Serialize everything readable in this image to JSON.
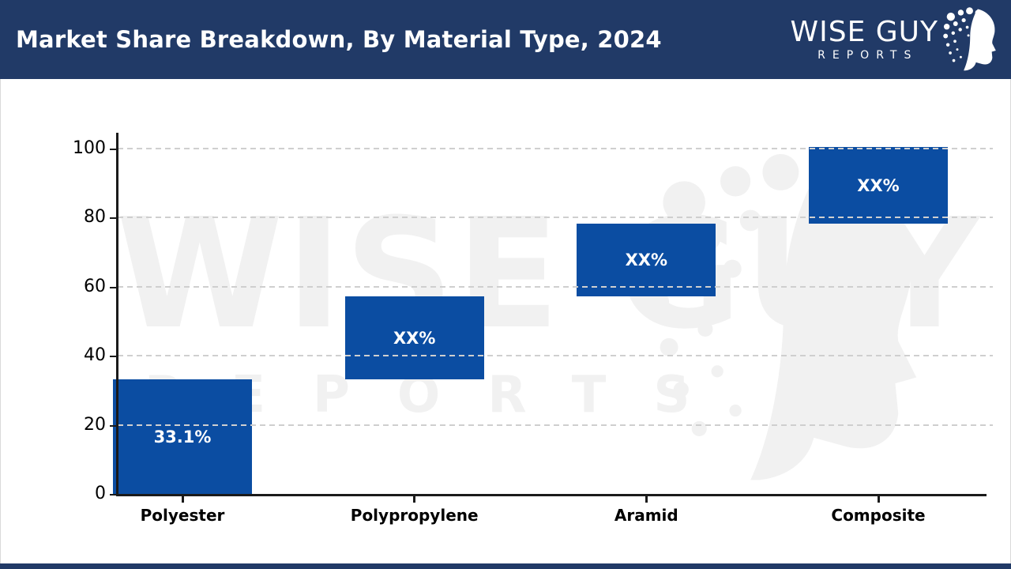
{
  "header": {
    "title": "Market Share Breakdown, By Material Type, 2024",
    "logo": {
      "wordmark": "WISE GUY",
      "subtext": "REPORTS"
    }
  },
  "watermark": {
    "line1": "WISE GUY",
    "line2": "REPORTS"
  },
  "colors": {
    "header_bg": "#213A67",
    "footer_bg": "#213A67",
    "bar": "#0B4DA2",
    "bar_label": "#FFFFFF",
    "gridline": "#CFCFCF",
    "axis": "#1A1A1A",
    "watermark": "#F1F1F1"
  },
  "chart_data": {
    "type": "bar",
    "subtype": "waterfall-floating-bars",
    "title": "Market Share Breakdown, By Material Type, 2024",
    "xlabel": "",
    "ylabel": "",
    "categories": [
      "Polyester",
      "Polypropylene",
      "Aramid",
      "Composite"
    ],
    "segments": [
      {
        "category": "Polyester",
        "start": 0,
        "end": 33.1,
        "label": "33.1%"
      },
      {
        "category": "Polypropylene",
        "start": 33.1,
        "end": 57.1,
        "label": "XX%"
      },
      {
        "category": "Aramid",
        "start": 57.1,
        "end": 78.2,
        "label": "XX%"
      },
      {
        "category": "Composite",
        "start": 78.2,
        "end": 100.3,
        "label": "XX%"
      }
    ],
    "y_ticks": [
      0,
      20,
      40,
      60,
      80,
      100
    ],
    "ylim": [
      0,
      104
    ],
    "grid": "horizontal dashed at y ticks, drawn over bars",
    "legend": "none"
  }
}
